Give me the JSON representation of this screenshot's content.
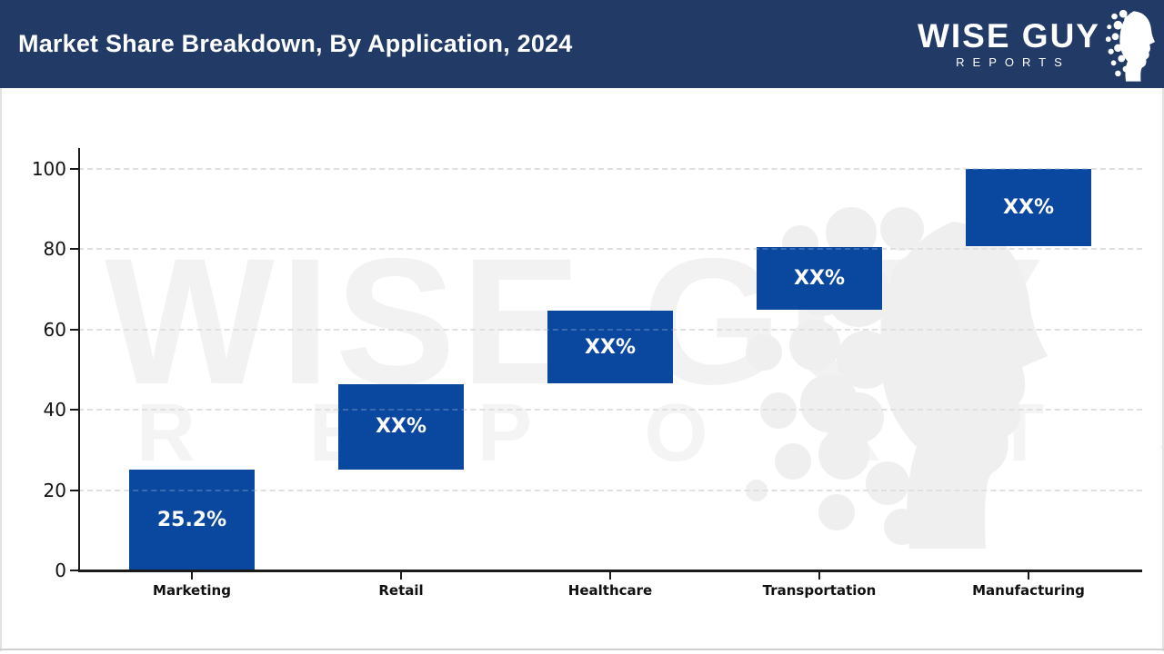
{
  "header": {
    "title": "Market Share Breakdown, By Application, 2024",
    "logo": {
      "line1": "WISE GUY",
      "line2": "REPORTS"
    }
  },
  "watermark": {
    "line1": "WISE GUY",
    "line2": "R E P O R T S"
  },
  "colors": {
    "header_bg": "#223a66",
    "bar": "#0a479f",
    "grid": "#d9d9d9",
    "axis": "#1a1a1a",
    "bar_label_text": "#ffffff",
    "watermark_text": "#f2f2f2"
  },
  "chart_data": {
    "type": "bar",
    "subtype": "waterfall",
    "title": "Market Share Breakdown, By Application, 2024",
    "categories": [
      "Marketing",
      "Retail",
      "Healthcare",
      "Transportation",
      "Manufacturing"
    ],
    "segments": [
      {
        "category": "Marketing",
        "start": 0,
        "end": 25.2,
        "label": "25.2%"
      },
      {
        "category": "Retail",
        "start": 25.2,
        "end": 46.4,
        "label": "XX%"
      },
      {
        "category": "Healthcare",
        "start": 46.6,
        "end": 64.7,
        "label": "XX%"
      },
      {
        "category": "Transportation",
        "start": 64.9,
        "end": 80.5,
        "label": "XX%"
      },
      {
        "category": "Manufacturing",
        "start": 80.8,
        "end": 100,
        "label": "XX%"
      }
    ],
    "xlabel": "",
    "ylabel": "",
    "ylim": [
      0,
      100
    ],
    "yticks": [
      0,
      20,
      40,
      60,
      80,
      100
    ],
    "grid": "horizontal-dashed",
    "legend": "none",
    "bar_color": "#0a479f"
  }
}
